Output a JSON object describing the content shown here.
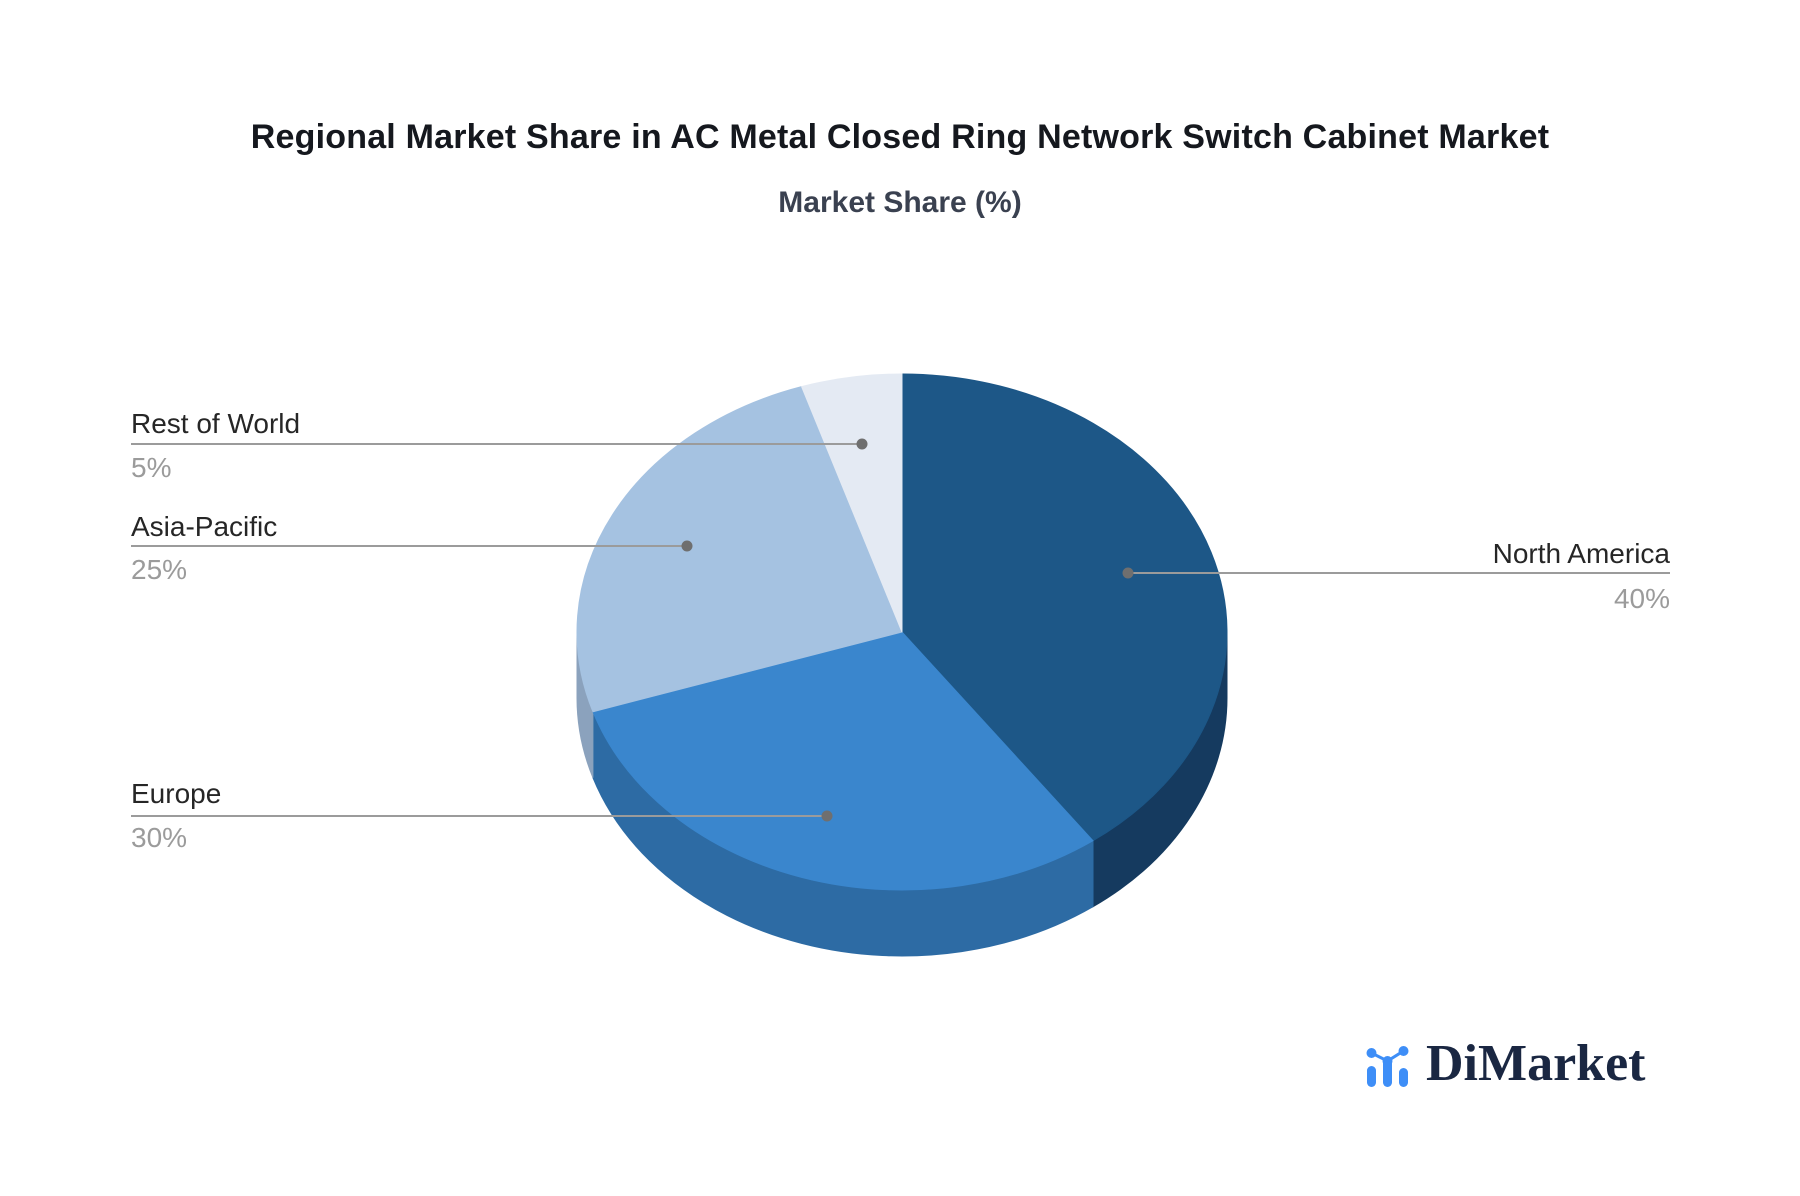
{
  "header": {
    "title": "Regional Market Share in AC Metal Closed Ring Network Switch Cabinet Market",
    "subtitle": "Market Share (%)"
  },
  "chart_data": {
    "type": "pie",
    "style": "3d",
    "title": "Regional Market Share in AC Metal Closed Ring Network Switch Cabinet Market",
    "subtitle": "Market Share (%)",
    "unit": "%",
    "start_angle": "12-o-clock",
    "direction": "clockwise",
    "legend_position": "none",
    "categories": [
      "North America",
      "Europe",
      "Asia-Pacific",
      "Rest of World"
    ],
    "values": [
      40,
      30,
      25,
      5
    ],
    "slices": [
      {
        "label": "North America",
        "value": 40,
        "pct_label": "40%",
        "color_top": "#1d5787",
        "color_side": "#153a5f"
      },
      {
        "label": "Europe",
        "value": 30,
        "pct_label": "30%",
        "color_top": "#3a86cd",
        "color_side": "#2d6ba4"
      },
      {
        "label": "Asia-Pacific",
        "value": 25,
        "pct_label": "25%",
        "color_top": "#a5c2e1",
        "color_side": "#8ba2bd"
      },
      {
        "label": "Rest of World",
        "value": 5,
        "pct_label": "5%",
        "color_top": "#e4eaf3",
        "color_side": "#c7d2e0"
      }
    ],
    "leader_line_color": "#9b9b9b",
    "leader_dot_color": "#6f6f6f"
  },
  "branding": {
    "name": "DiMarket",
    "logo_icon": "bar-chart-with-trend-dots-icon",
    "icon_color": "#3e8ef7",
    "text_color": "#1a2742"
  }
}
